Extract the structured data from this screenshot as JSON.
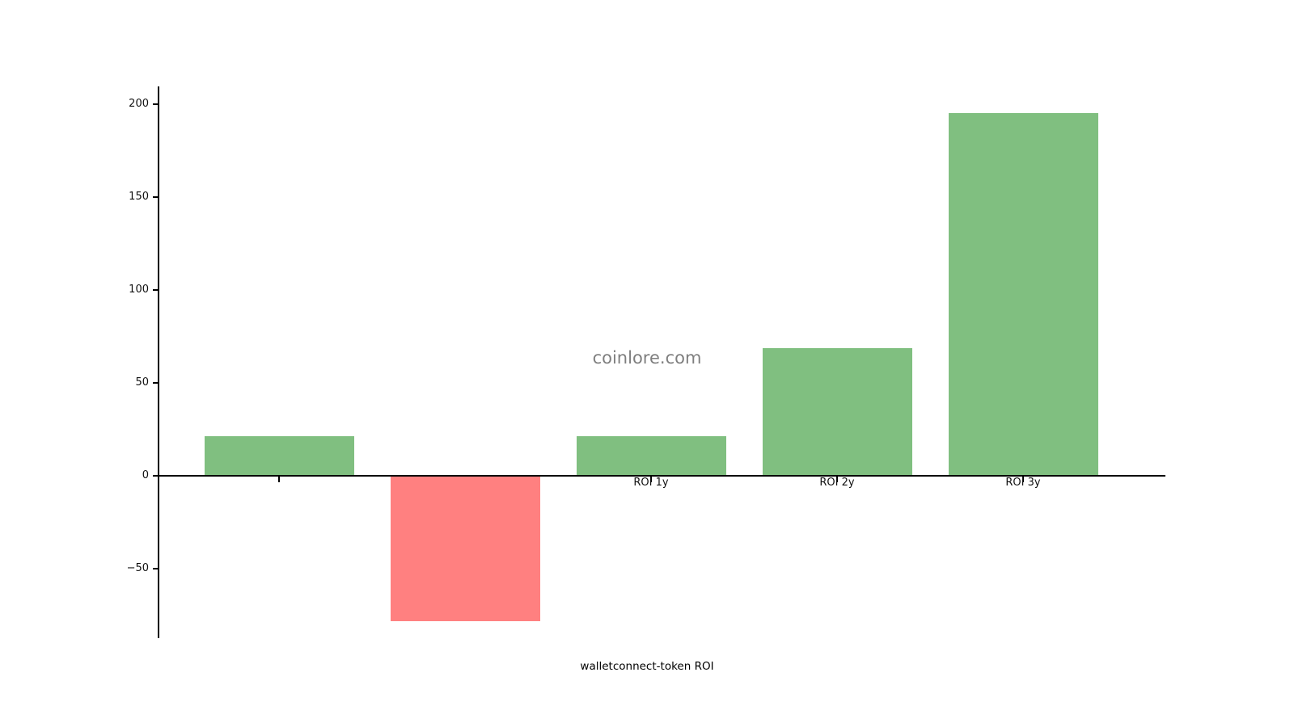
{
  "chart_data": {
    "type": "bar",
    "title": "walletconnect-token ROI",
    "xlabel": "walletconnect-token ROI",
    "ylabel": "",
    "categories": [
      "",
      "",
      "ROI 1y",
      "ROI 2y",
      "ROI 3y"
    ],
    "values": [
      21.3,
      -78.3,
      21.3,
      68.7,
      195.2
    ],
    "yticks": [
      200,
      150,
      100,
      50,
      0,
      -50
    ],
    "ytick_labels": [
      "200",
      "150",
      "100",
      "50",
      "0",
      "−50"
    ],
    "ylim": [
      -88,
      209
    ],
    "grid": false,
    "legend": "none",
    "watermark": "coinlore.com",
    "colors": {
      "positive_bar": "#80bf80",
      "negative_bar": "#ff8080",
      "axis": "#000000",
      "tick_text": "#111111",
      "watermark_text": "#7f7f7f"
    }
  }
}
